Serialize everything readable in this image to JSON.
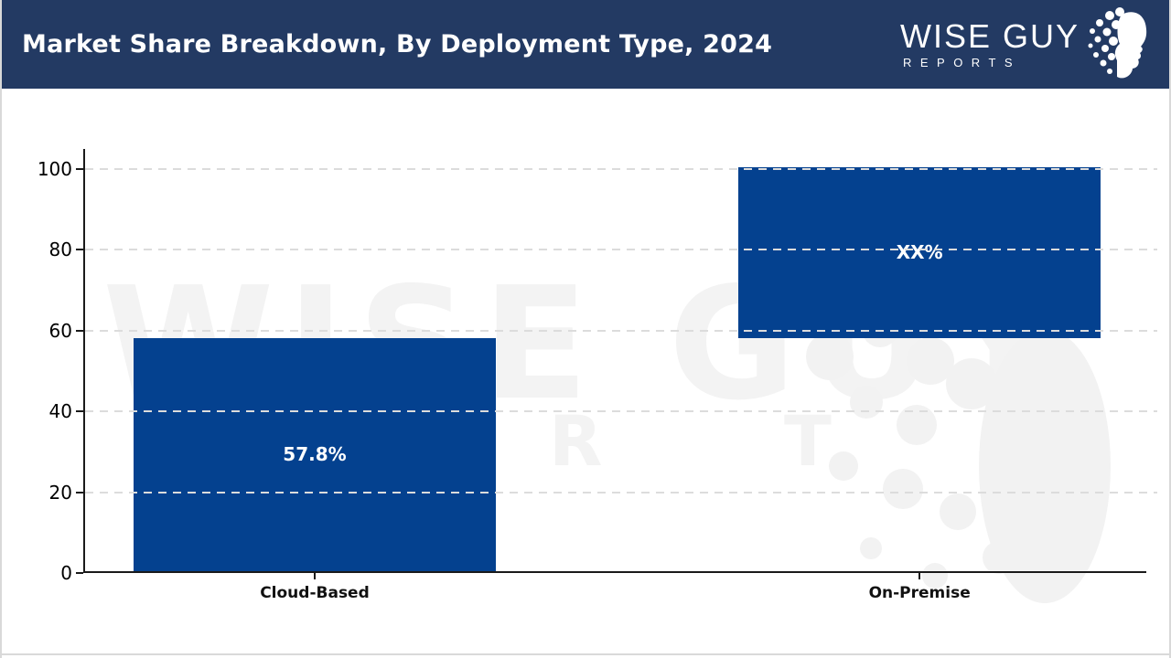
{
  "header": {
    "title": "Market Share Breakdown, By Deployment Type, 2024",
    "brand": {
      "line1": "WISE GUY",
      "line2": "REPORTS"
    }
  },
  "watermark": {
    "line1": "WISE GUY",
    "line2": "R T S"
  },
  "chart_data": {
    "type": "bar",
    "title": "Market Share Breakdown, By Deployment Type, 2024",
    "categories": [
      "Cloud-Based",
      "On-Premise"
    ],
    "bars": [
      {
        "category": "Cloud-Based",
        "from": 0,
        "to": 57.8,
        "label": "57.8%"
      },
      {
        "category": "On-Premise",
        "from": 57.8,
        "to": 100,
        "label": "XX%"
      }
    ],
    "series": [
      {
        "name": "Market Share (%)",
        "values": [
          57.8,
          null
        ]
      }
    ],
    "value_labels": [
      "57.8%",
      "XX%"
    ],
    "y_ticks": [
      0,
      20,
      40,
      60,
      80,
      100
    ],
    "y_tick_labels": [
      "0",
      "20",
      "40",
      "60",
      "80",
      "100"
    ],
    "ylim": [
      0,
      105
    ],
    "xlabel": "",
    "ylabel": "",
    "grid": "horizontal-dashed",
    "legend": "none"
  },
  "colors": {
    "header_bg": "#233a63",
    "bar": "#04418f",
    "grid": "#dcdcdc",
    "axis": "#1a1a1a",
    "bar_label": "#ffffff",
    "watermark": "#f3f3f3"
  }
}
